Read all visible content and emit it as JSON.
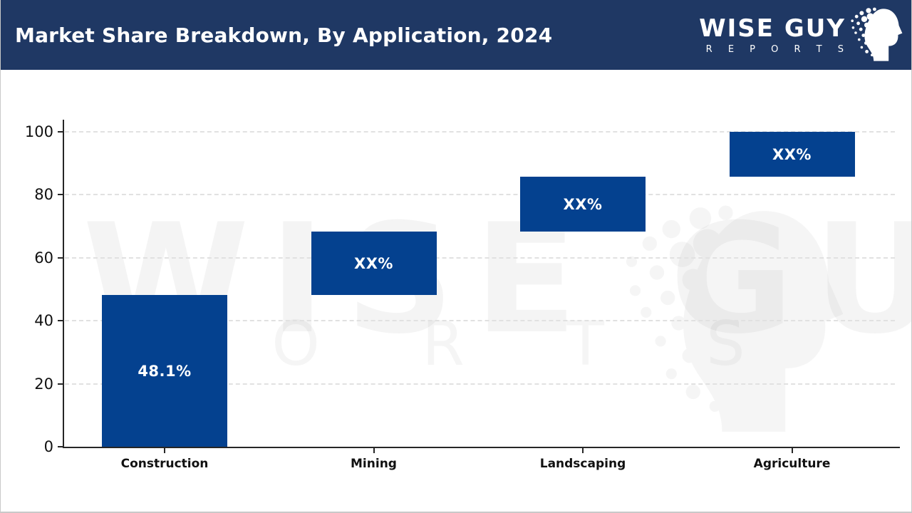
{
  "header": {
    "title": "Market Share Breakdown, By Application, 2024",
    "logo": {
      "line1": "WISE GUY",
      "line2": "R E P O R T S",
      "icon": "dotted-face-profile-icon"
    },
    "bg_color": "#1f3864"
  },
  "watermark": {
    "line1": "WISE GUY",
    "line2": "P O R T S"
  },
  "chart_data": {
    "type": "bar",
    "subtype": "waterfall",
    "title": "Market Share Breakdown, By Application, 2024",
    "xlabel": "",
    "ylabel": "",
    "ylim": [
      0,
      106
    ],
    "yticks": [
      0,
      20,
      40,
      60,
      80,
      100
    ],
    "grid": "horizontal-dashed",
    "bar_color": "#04418f",
    "label_color": "#ffffff",
    "axis_color": "#262626",
    "categories": [
      "Construction",
      "Mining",
      "Landscaping",
      "Agriculture"
    ],
    "segments": [
      {
        "category": "Construction",
        "start": 0,
        "end": 48.1,
        "value": 48.1,
        "label": "48.1%"
      },
      {
        "category": "Mining",
        "start": 48.1,
        "end": 68.3,
        "value": 20.2,
        "label": "XX%"
      },
      {
        "category": "Landscaping",
        "start": 68.3,
        "end": 85.7,
        "value": 17.4,
        "label": "XX%"
      },
      {
        "category": "Agriculture",
        "start": 85.7,
        "end": 100,
        "value": 14.3,
        "label": "XX%"
      }
    ]
  }
}
